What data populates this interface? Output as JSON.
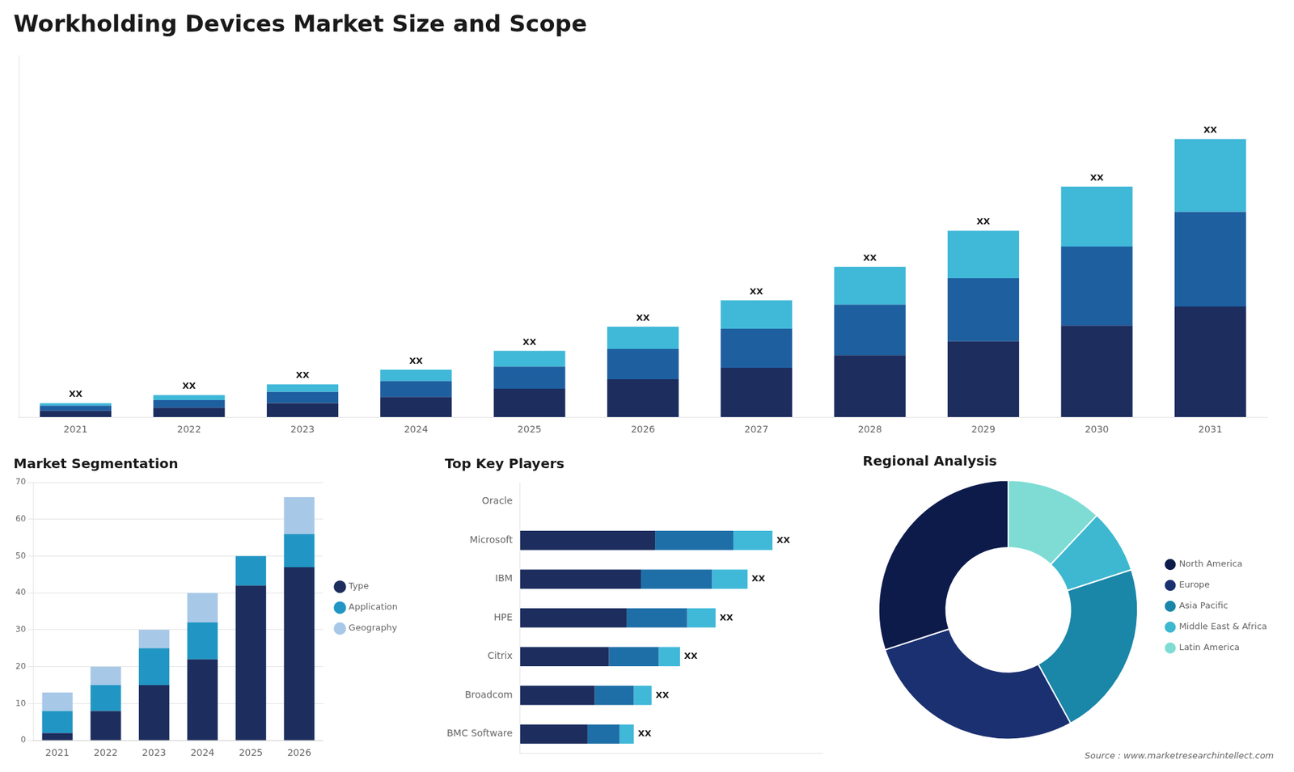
{
  "chart_data": [
    {
      "type": "bar",
      "title": "Workholding Devices Market Size and Scope",
      "categories": [
        "2021",
        "2022",
        "2023",
        "2024",
        "2025",
        "2026",
        "2027",
        "2028",
        "2029",
        "2030",
        "2031"
      ],
      "series": [
        {
          "color": "#1c2d5e",
          "values": [
            1.0,
            1.5,
            2.2,
            3.2,
            4.5,
            6.0,
            7.8,
            9.8,
            12.0,
            14.5,
            17.5
          ]
        },
        {
          "color": "#1e5fa0",
          "values": [
            0.8,
            1.2,
            1.8,
            2.5,
            3.5,
            4.8,
            6.2,
            8.0,
            10.0,
            12.5,
            15.0
          ]
        },
        {
          "color": "#40b8d8",
          "values": [
            0.4,
            0.8,
            1.2,
            1.8,
            2.5,
            3.5,
            4.5,
            6.0,
            7.5,
            9.5,
            11.5
          ]
        }
      ],
      "stacked": true,
      "ylim": [
        0,
        57.2
      ],
      "tick_labels": "x",
      "grid": false,
      "annotations": [
        {
          "x": "2021",
          "text": "XX"
        },
        {
          "x": "2022",
          "text": "XX"
        },
        {
          "x": "2023",
          "text": "XX"
        },
        {
          "x": "2024",
          "text": "XX"
        },
        {
          "x": "2025",
          "text": "XX"
        },
        {
          "x": "2026",
          "text": "XX"
        },
        {
          "x": "2027",
          "text": "XX"
        },
        {
          "x": "2028",
          "text": "XX"
        },
        {
          "x": "2029",
          "text": "XX"
        },
        {
          "x": "2030",
          "text": "XX"
        },
        {
          "x": "2031",
          "text": "XX"
        }
      ]
    },
    {
      "type": "bar",
      "title": "Market Segmentation",
      "categories": [
        "2021",
        "2022",
        "2023",
        "2024",
        "2025",
        "2026"
      ],
      "series": [
        {
          "name": "Type",
          "color": "#1c2d5e",
          "values": [
            2,
            8,
            15,
            22,
            42,
            47
          ]
        },
        {
          "name": "Application",
          "color": "#2196c4",
          "values": [
            6,
            7,
            10,
            10,
            8,
            9
          ]
        },
        {
          "name": "Geography",
          "color": "#a8c8e8",
          "values": [
            5,
            5,
            5,
            8,
            0,
            10
          ]
        }
      ],
      "stacked": true,
      "ylim": [
        0,
        70
      ],
      "yticks": [
        0,
        10,
        20,
        30,
        40,
        50,
        60,
        70
      ],
      "grid": true,
      "legend": "right"
    },
    {
      "type": "bar",
      "orientation": "horizontal",
      "title": "Top Key Players",
      "categories": [
        "Oracle",
        "Microsoft",
        "IBM",
        "HPE",
        "Citrix",
        "Broadcom",
        "BMC Software"
      ],
      "series": [
        {
          "color": "#1c2d5e",
          "values": [
            0,
            3.8,
            3.4,
            3.0,
            2.5,
            2.1,
            1.9
          ]
        },
        {
          "color": "#1e6fa8",
          "values": [
            0,
            2.2,
            2.0,
            1.7,
            1.4,
            1.1,
            0.9
          ]
        },
        {
          "color": "#40b8d8",
          "values": [
            0,
            1.1,
            1.0,
            0.8,
            0.6,
            0.5,
            0.4
          ]
        }
      ],
      "stacked": true,
      "xlim": [
        0,
        8.5
      ],
      "tick_labels": "y",
      "grid": false,
      "annotations": [
        {
          "x": "Microsoft",
          "text": "XX"
        },
        {
          "x": "IBM",
          "text": "XX"
        },
        {
          "x": "HPE",
          "text": "XX"
        },
        {
          "x": "Citrix",
          "text": "XX"
        },
        {
          "x": "Broadcom",
          "text": "XX"
        },
        {
          "x": "BMC Software",
          "text": "XX"
        }
      ]
    },
    {
      "type": "doughnut",
      "title": "Regional Analysis",
      "categories": [
        "Latin America",
        "Middle East &\nAfrica",
        "Asia Pacific",
        "Europe",
        "North America"
      ],
      "values": [
        12,
        8,
        22,
        28,
        30
      ],
      "colors": [
        "#7edcd4",
        "#3db8d0",
        "#1a86a8",
        "#1a3070",
        "#0d1b4b"
      ],
      "legend": "right",
      "annotations": [
        {
          "text": "Source : www.marketresearchintellect.com"
        }
      ]
    }
  ]
}
